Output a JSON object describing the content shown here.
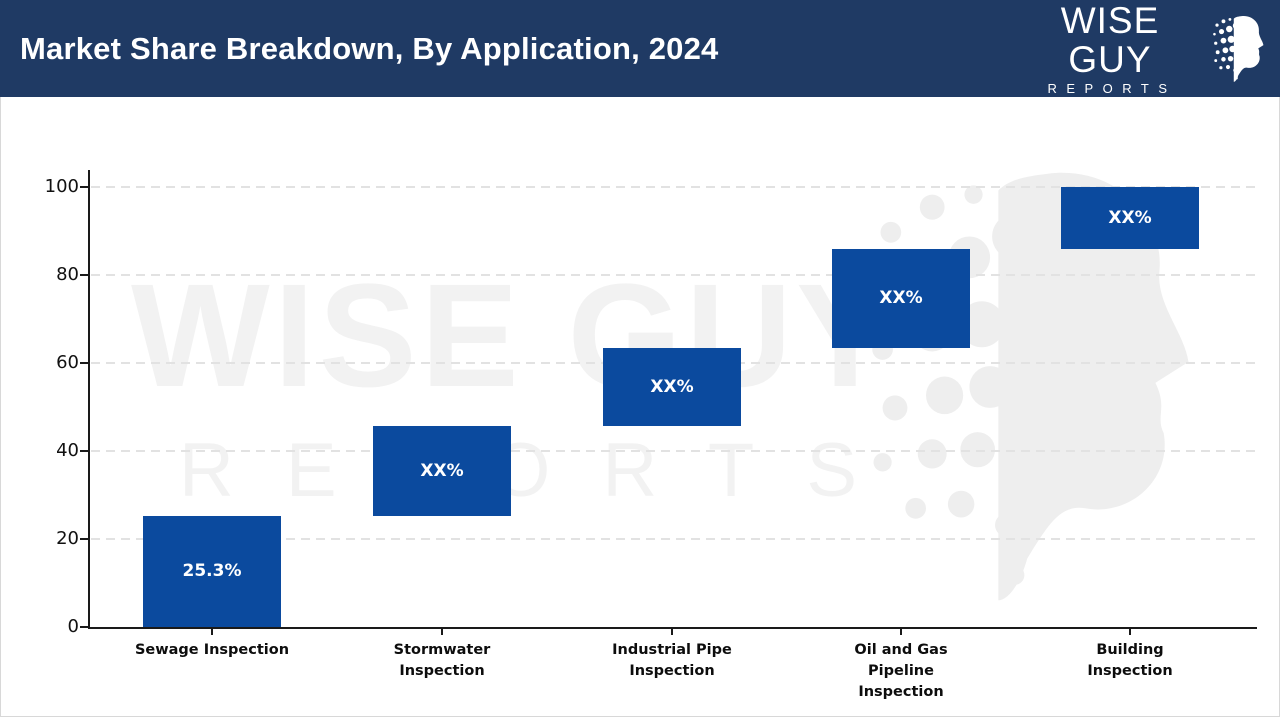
{
  "header": {
    "title": "Market Share Breakdown, By Application, 2024",
    "logo": {
      "wordmark": "WISE GUY",
      "subtitle": "REPORTS"
    }
  },
  "watermark": {
    "wordmark": "WISE GUY",
    "subtitle": "REPORTS"
  },
  "colors": {
    "header_bg": "#1f3a64",
    "bar": "#0b4a9e",
    "bar_label": "#ffffff",
    "grid": "#e2e2e2",
    "axis": "#1a1a1a",
    "text": "#111111",
    "watermark": "#f2f2f2"
  },
  "chart_data": {
    "type": "bar",
    "subtype": "waterfall",
    "title": "Market Share Breakdown, By Application, 2024",
    "xlabel": "",
    "ylabel": "",
    "ylim": [
      0,
      100
    ],
    "yticks": [
      0,
      20,
      40,
      60,
      80,
      100
    ],
    "grid": "horizontal-dashed",
    "legend": "none",
    "categories": [
      "Sewage Inspection",
      "Stormwater\nInspection",
      "Industrial Pipe\nInspection",
      "Oil and Gas\nPipeline\nInspection",
      "Building\nInspection"
    ],
    "segments": [
      {
        "category": "Sewage Inspection",
        "start": 0,
        "end": 25.3,
        "value_label": "25.3%"
      },
      {
        "category": "Stormwater Inspection",
        "start": 25.3,
        "end": 45.7,
        "value_label": "XX%"
      },
      {
        "category": "Industrial Pipe Inspection",
        "start": 45.7,
        "end": 63.4,
        "value_label": "XX%"
      },
      {
        "category": "Oil and Gas Pipeline Inspection",
        "start": 63.4,
        "end": 86,
        "value_label": "XX%"
      },
      {
        "category": "Building Inspection",
        "start": 86,
        "end": 100,
        "value_label": "XX%"
      }
    ]
  }
}
